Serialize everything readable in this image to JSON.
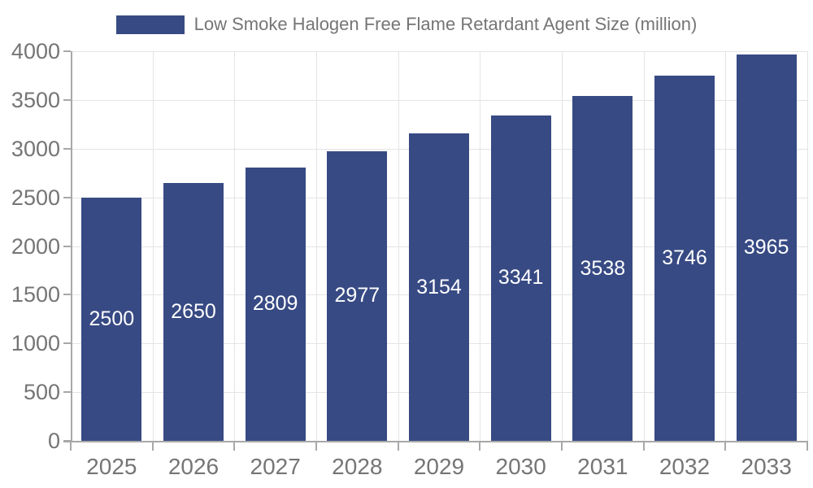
{
  "chart_data": {
    "type": "bar",
    "title": "",
    "legend": "Low Smoke Halogen Free Flame Retardant Agent Size (million)",
    "legend_position": "top-center",
    "categories": [
      "2025",
      "2026",
      "2027",
      "2028",
      "2029",
      "2030",
      "2031",
      "2032",
      "2033"
    ],
    "values": [
      2500,
      2650,
      2809,
      2977,
      3154,
      3341,
      3538,
      3746,
      3965
    ],
    "bar_labels": [
      "2500",
      "2650",
      "2809",
      "2977",
      "3154",
      "3341",
      "3538",
      "3746",
      "3965"
    ],
    "xlabel": "",
    "ylabel": "",
    "ylim": [
      0,
      4000
    ],
    "ytick_interval": 500,
    "ytick_labels": [
      "0",
      "500",
      "1000",
      "1500",
      "2000",
      "2500",
      "3000",
      "3500",
      "4000"
    ],
    "grid": true,
    "colors": {
      "bar": "#374a84",
      "bar_label": "#ffffff",
      "axis_text": "#757575",
      "grid_line": "#e4e4e4",
      "axis_line": "#a8a8a8",
      "background": "#ffffff"
    }
  }
}
